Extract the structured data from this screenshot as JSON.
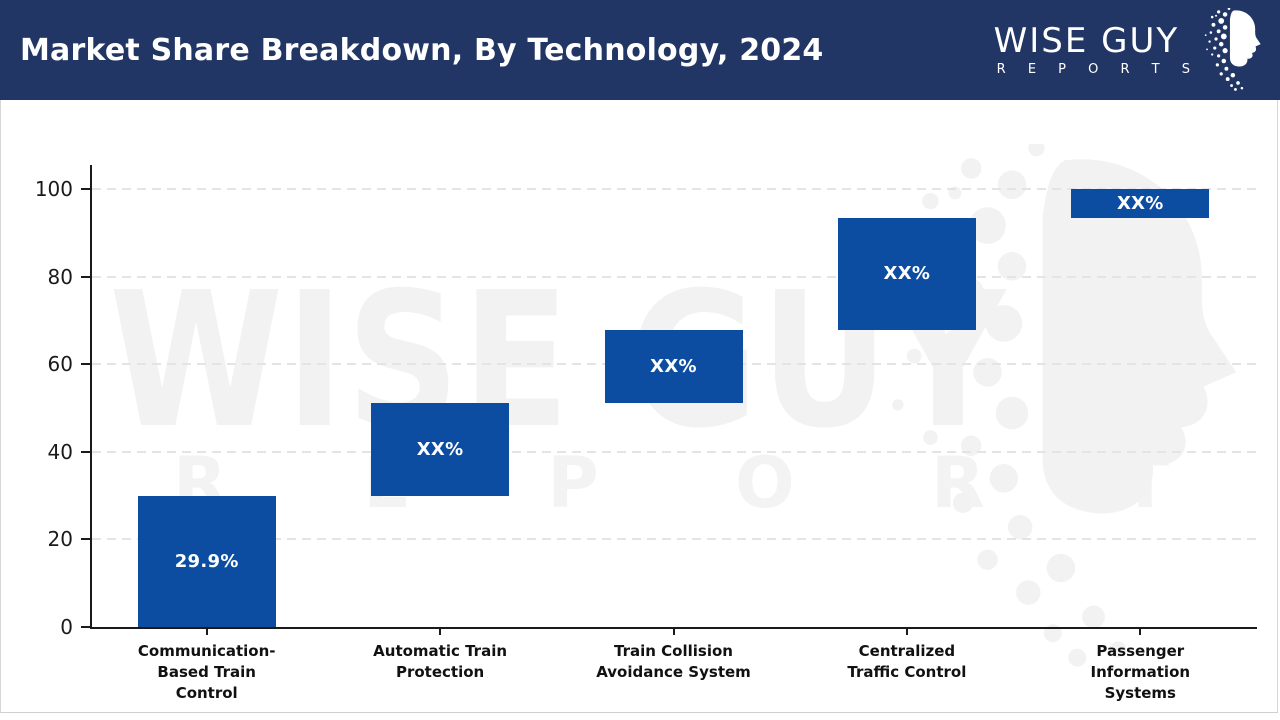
{
  "header": {
    "title": "Market Share Breakdown, By Technology, 2024",
    "logo": {
      "wordmark": "WISE GUY",
      "subtext": "R E P O R T S"
    }
  },
  "watermark": {
    "wordmark": "WISE GUY",
    "subtext": "R E P O R T S"
  },
  "colors": {
    "header_bg": "#213664",
    "bar": "#0c4da2",
    "bar_label": "#ffffff",
    "axis": "#1a1a1a",
    "gridline": "#e4e4e4",
    "watermark": "#f2f2f2"
  },
  "chart_data": {
    "type": "bar",
    "variant": "floating_waterfall",
    "title": "Market Share Breakdown, By Technology, 2024",
    "xlabel": "",
    "ylabel": "",
    "grid": "horizontal-dashed",
    "legend": "none",
    "yticks": [
      0,
      20,
      40,
      60,
      80,
      100
    ],
    "ylim": [
      0,
      105.5
    ],
    "categories": [
      "Communication-\nBased Train\nControl",
      "Automatic Train\nProtection",
      "Train Collision\nAvoidance System",
      "Centralized\nTraffic Control",
      "Passenger\nInformation\nSystems"
    ],
    "segments": [
      {
        "start": 0,
        "end": 29.9,
        "label": "29.9%"
      },
      {
        "start": 29.9,
        "end": 51.2,
        "label": "XX%"
      },
      {
        "start": 51.2,
        "end": 67.9,
        "label": "XX%"
      },
      {
        "start": 67.9,
        "end": 93.5,
        "label": "XX%"
      },
      {
        "start": 93.5,
        "end": 100,
        "label": "XX%"
      }
    ]
  }
}
